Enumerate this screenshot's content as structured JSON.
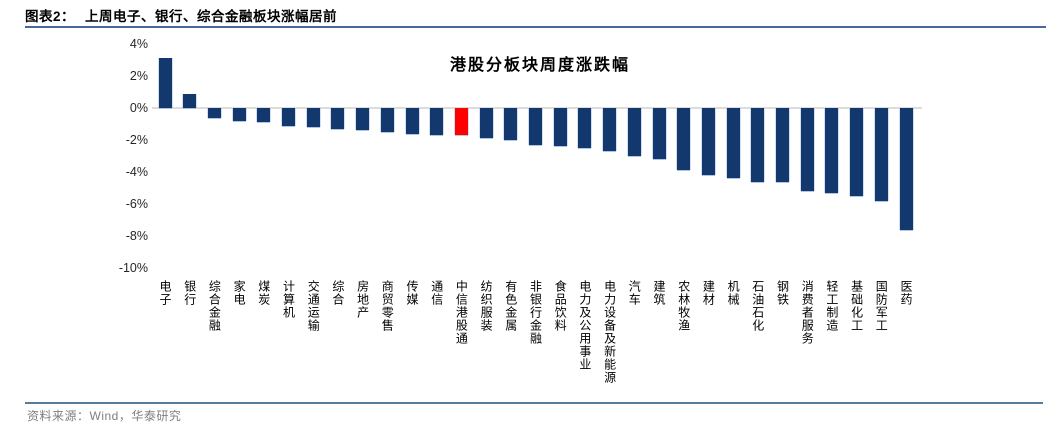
{
  "header": {
    "label": "图表2：",
    "title": "上周电子、银行、综合金融板块涨幅居前"
  },
  "footer": {
    "source": "资料来源：Wind，华泰研究"
  },
  "colors": {
    "bar": "#12386e",
    "highlight": "#ff0000",
    "zero_line": "#dcdcdc",
    "header_rule": "#46689b",
    "footer_rule": "#557d97",
    "source_text": "#7f7f7f"
  },
  "chart_data": {
    "type": "bar",
    "title": "港股分板块周度涨跌幅",
    "unit": "%",
    "categories": [
      "电子",
      "银行",
      "综合金融",
      "家电",
      "煤炭",
      "计算机",
      "交通运输",
      "综合",
      "房地产",
      "商贸零售",
      "传媒",
      "通信",
      "中信港股通",
      "纺织服装",
      "有色金属",
      "非银行金融",
      "食品饮料",
      "电力及公用事业",
      "电力设备及新能源",
      "汽车",
      "建筑",
      "农林牧渔",
      "建材",
      "机械",
      "石油石化",
      "钢铁",
      "消费者服务",
      "轻工制造",
      "基础化工",
      "国防军工",
      "医药"
    ],
    "values": [
      3.1,
      0.9,
      -0.6,
      -0.8,
      -0.9,
      -1.1,
      -1.2,
      -1.3,
      -1.4,
      -1.5,
      -1.6,
      -1.7,
      -1.7,
      -1.9,
      -2.0,
      -2.3,
      -2.4,
      -2.5,
      -2.7,
      -3.0,
      -3.2,
      -3.9,
      -4.2,
      -4.4,
      -4.6,
      -4.6,
      -5.2,
      -5.3,
      -5.5,
      -5.8,
      -7.6
    ],
    "highlight_category": "中信港股通",
    "y_ticks": [
      4,
      2,
      0,
      -2,
      -4,
      -6,
      -8,
      -10
    ],
    "ylim": [
      -10,
      4
    ],
    "grid": false,
    "legend": "none"
  }
}
